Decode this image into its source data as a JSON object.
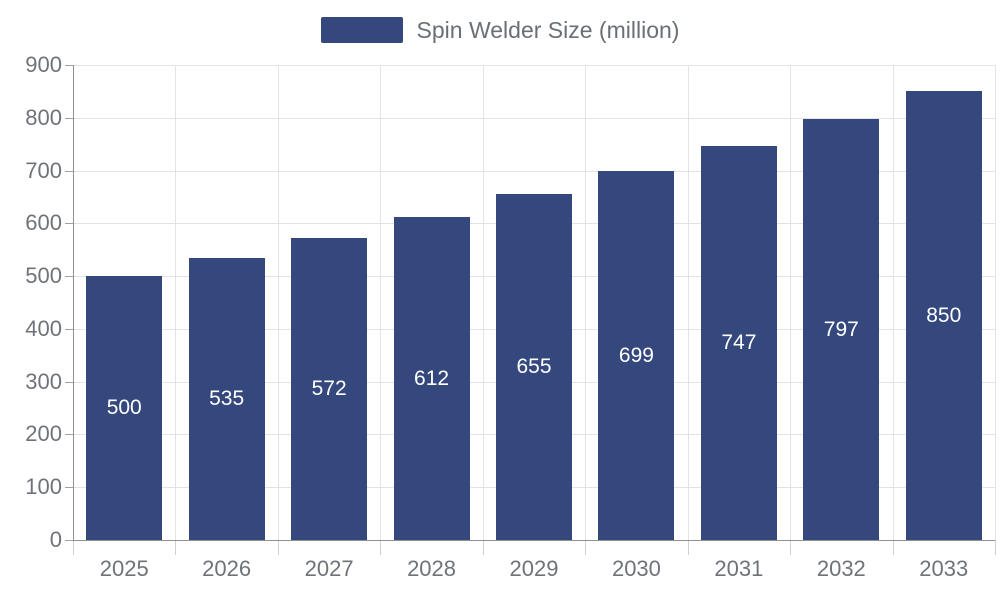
{
  "chart_data": {
    "type": "bar",
    "title": "",
    "legend": "Spin Welder Size (million)",
    "legend_position": "top",
    "categories": [
      "2025",
      "2026",
      "2027",
      "2028",
      "2029",
      "2030",
      "2031",
      "2032",
      "2033"
    ],
    "series": [
      {
        "name": "Spin Welder Size (million)",
        "values": [
          500,
          535,
          572,
          612,
          655,
          699,
          747,
          797,
          850
        ]
      }
    ],
    "xlabel": "",
    "ylabel": "",
    "ylim": [
      0,
      900
    ],
    "y_ticks": [
      0,
      100,
      200,
      300,
      400,
      500,
      600,
      700,
      800,
      900
    ],
    "grid": true,
    "value_labels": "centered-inside-bars",
    "colors": {
      "bar": "#35487e",
      "grid_line": "#e2e2e8",
      "axis_line": "#909090",
      "y_tick_mark": "#a0a0a6",
      "x_tick_mark": "#cfcfd6",
      "tick_label_text": "#6f7379",
      "legend_text": "#6a6f76",
      "value_label_text": "#ffffff",
      "background": "#ffffff"
    }
  }
}
